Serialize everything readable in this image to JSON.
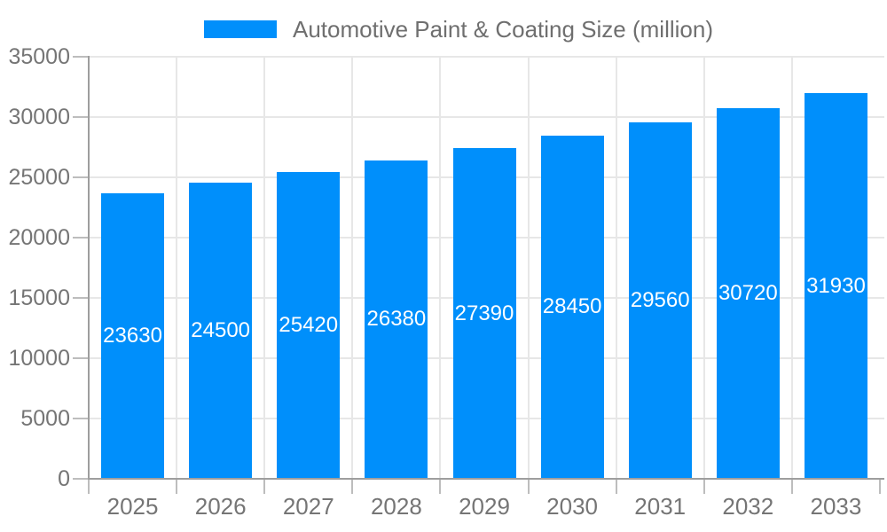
{
  "chart_data": {
    "type": "bar",
    "title": "Automotive Paint & Coating Size (million)",
    "series_name": "Automotive Paint & Coating Size (million)",
    "categories": [
      "2025",
      "2026",
      "2027",
      "2028",
      "2029",
      "2030",
      "2031",
      "2032",
      "2033"
    ],
    "values": [
      23630,
      24500,
      25420,
      26380,
      27390,
      28450,
      29560,
      30720,
      31930
    ],
    "xlabel": "",
    "ylabel": "",
    "ylim": [
      0,
      35000
    ],
    "yticks": [
      0,
      5000,
      10000,
      15000,
      20000,
      25000,
      30000,
      35000
    ],
    "grid": true,
    "legend_position": "top-center",
    "data_labels": "inside-center",
    "colors": {
      "bar": "#008FFB",
      "bar_value_label": "#ffffff",
      "axis_text": "#757575",
      "legend_text": "#6f6f6f",
      "gridline": "#e7e7e7",
      "axis_line": "#9e9e9e",
      "tick": "#bdbdbd",
      "background": "#ffffff"
    }
  }
}
